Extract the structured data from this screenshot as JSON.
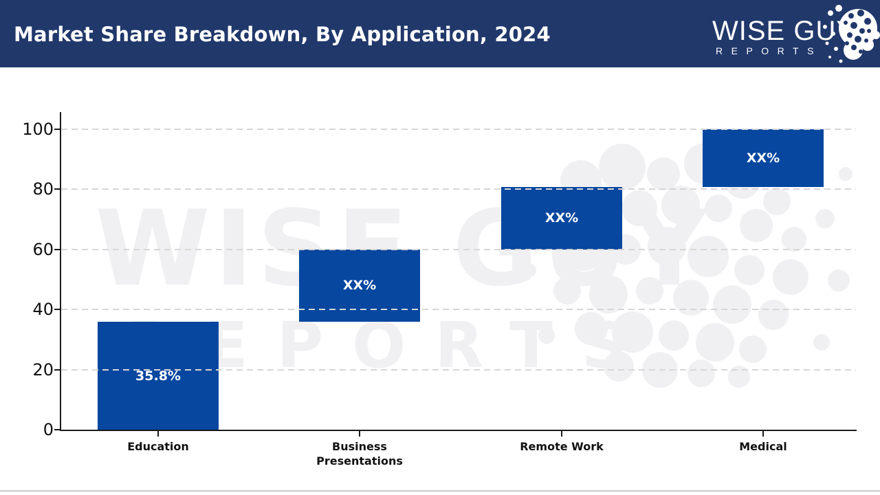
{
  "header": {
    "title": "Market Share Breakdown, By Application, 2024",
    "logo": {
      "line1": "WISE GUY",
      "line2": "REPORTS"
    }
  },
  "watermark": {
    "line1": "WISE GUY",
    "line2": "REPORTS"
  },
  "colors": {
    "header_bg": "#21386B",
    "bar": "#0747A0",
    "grid": "#d6d6d6",
    "axis": "#1a1a1a",
    "text": "#111111",
    "bar_label": "#ffffff",
    "watermark": "#f0f0f2",
    "divider": "#c9c9c9"
  },
  "chart_data": {
    "type": "bar",
    "subtype": "waterfall",
    "title": "Market Share Breakdown, By Application, 2024",
    "categories": [
      "Education",
      "Business\nPresentations",
      "Remote Work",
      "Medical"
    ],
    "bars": [
      {
        "category": "Education",
        "start": 0,
        "end": 35.8,
        "label": "35.8%"
      },
      {
        "category": "Business Presentations",
        "start": 35.8,
        "end": 60.0,
        "label": "XX%"
      },
      {
        "category": "Remote Work",
        "start": 60.0,
        "end": 80.6,
        "label": "XX%"
      },
      {
        "category": "Medical",
        "start": 80.6,
        "end": 100.0,
        "label": "XX%"
      }
    ],
    "xlabel": "",
    "ylabel": "",
    "ylim": [
      0,
      100
    ],
    "yticks": [
      0,
      20,
      40,
      60,
      80,
      100
    ],
    "grid": "horizontal-dashed",
    "legend": "none",
    "bar_color": "#0747A0"
  }
}
